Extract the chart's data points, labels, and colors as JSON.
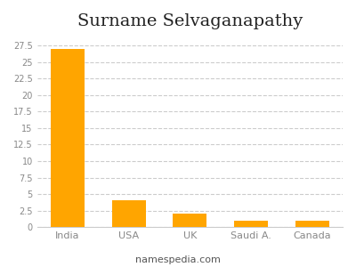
{
  "title": "Surname Selvaganapathy",
  "categories": [
    "India",
    "USA",
    "UK",
    "Saudi A.",
    "Canada"
  ],
  "values": [
    27,
    4,
    2,
    1,
    1
  ],
  "bar_color": "#FFA500",
  "background_color": "#ffffff",
  "ylim": [
    0,
    29
  ],
  "yticks": [
    0,
    2.5,
    5,
    7.5,
    10,
    12.5,
    15,
    17.5,
    20,
    22.5,
    25,
    27.5
  ],
  "ytick_labels": [
    "0",
    "2.5",
    "5",
    "7.5",
    "10",
    "12.5",
    "15",
    "17.5",
    "20",
    "22.5",
    "25",
    "27.5"
  ],
  "grid_color": "#cccccc",
  "title_fontsize": 14,
  "tick_fontsize": 7,
  "watermark": "namespedia.com",
  "watermark_fontsize": 8
}
